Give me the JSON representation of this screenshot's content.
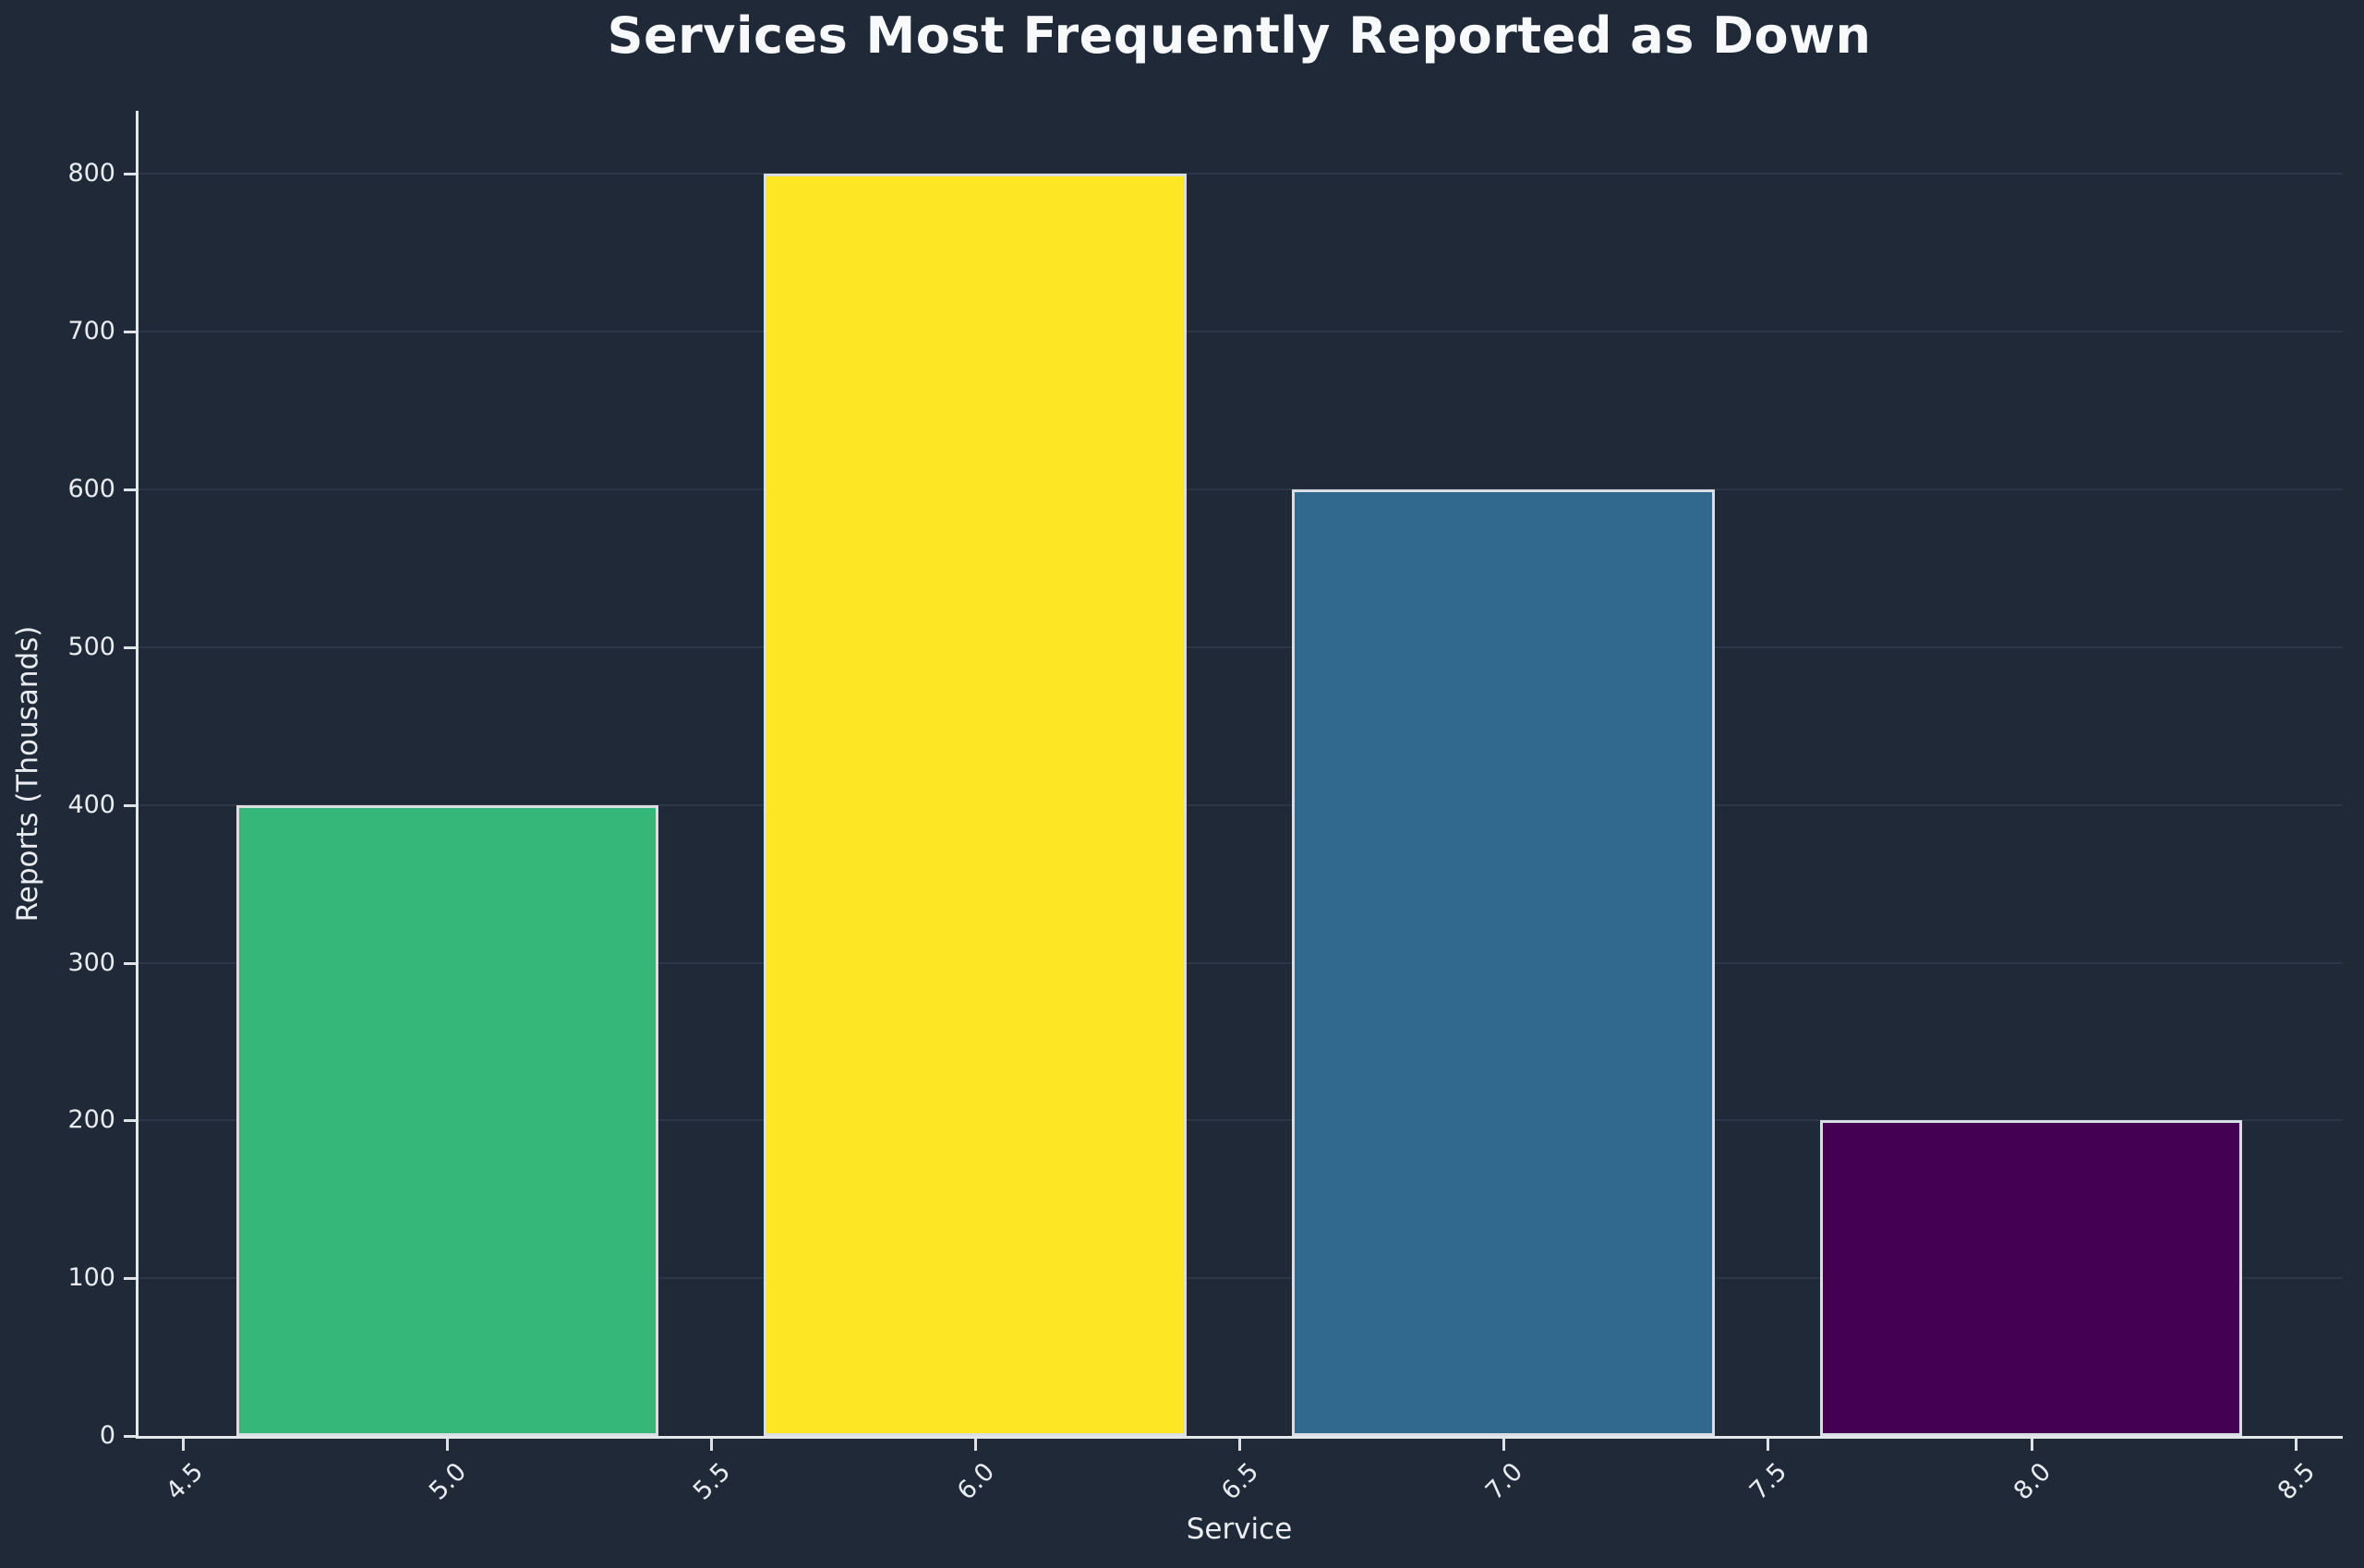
{
  "theme": {
    "background_color": "#1f2937",
    "text_color": "#e9edf1",
    "title_color": "#f7f9fb",
    "spine_color": "#e3e7ea",
    "tick_color": "#dfe3e7",
    "grid_color": "#2b3747",
    "bar_edge_color": "#d9dee3"
  },
  "chart_data": {
    "type": "bar",
    "title": "Services Most Frequently Reported as Down",
    "xlabel": "Service",
    "ylabel": "Reports (Thousands)",
    "x": [
      5,
      6,
      7,
      8
    ],
    "values": [
      400,
      800,
      600,
      200
    ],
    "bar_width": 0.8,
    "bar_colors": [
      "#35b779",
      "#fde725",
      "#31688e",
      "#440154"
    ],
    "xlim": [
      4.41,
      8.59
    ],
    "ylim": [
      0,
      840
    ],
    "xticks": [
      4.5,
      5.0,
      5.5,
      6.0,
      6.5,
      7.0,
      7.5,
      8.0,
      8.5
    ],
    "xtick_labels": [
      "4.5",
      "5.0",
      "5.5",
      "6.0",
      "6.5",
      "7.0",
      "7.5",
      "8.0",
      "8.5"
    ],
    "yticks": [
      0,
      100,
      200,
      300,
      400,
      500,
      600,
      700,
      800
    ],
    "ytick_labels": [
      "0",
      "100",
      "200",
      "300",
      "400",
      "500",
      "600",
      "700",
      "800"
    ],
    "grid": "horizontal",
    "legend": "none",
    "xtick_label_rotation_deg": 45
  }
}
